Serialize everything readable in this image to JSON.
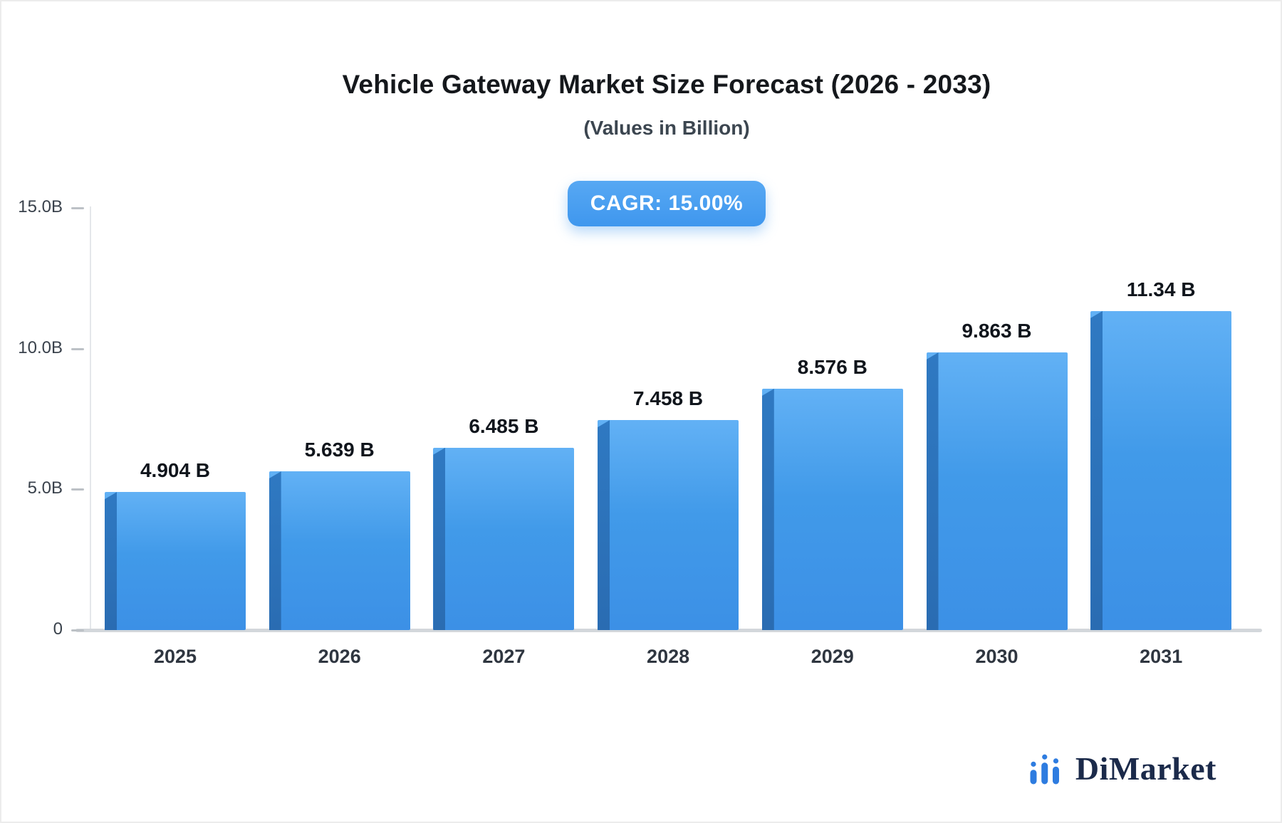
{
  "chart_data": {
    "type": "bar",
    "title": "Vehicle Gateway Market Size Forecast (2026 - 2033)",
    "subtitle": "(Values in Billion)",
    "badge": "CAGR: 15.00%",
    "categories": [
      "2025",
      "2026",
      "2027",
      "2028",
      "2029",
      "2030",
      "2031"
    ],
    "values": [
      4.904,
      5.639,
      6.485,
      7.458,
      8.576,
      9.863,
      11.34
    ],
    "value_labels": [
      "4.904 B",
      "5.639 B",
      "6.485 B",
      "7.458 B",
      "8.576 B",
      "9.863 B",
      "11.34 B"
    ],
    "xlabel": "",
    "ylabel": "",
    "ylim": [
      0,
      15
    ],
    "yticks": [
      {
        "value": 15,
        "label": "15.0B"
      },
      {
        "value": 10,
        "label": "10.0B"
      },
      {
        "value": 5,
        "label": "5.0B"
      },
      {
        "value": 0,
        "label": "0"
      }
    ],
    "grid": false,
    "legend": false,
    "bar_face_color_top": "#62b1f5",
    "bar_face_color_bottom": "#3c90e6",
    "bar_side_color": "#2d74ba",
    "badge_color": "#4aa0f1"
  },
  "branding": {
    "logo_text": "DiMarket",
    "logo_icon": "bar-chart-icon",
    "logo_color": "#2e7ce0",
    "logo_text_color": "#1b2a4a"
  }
}
